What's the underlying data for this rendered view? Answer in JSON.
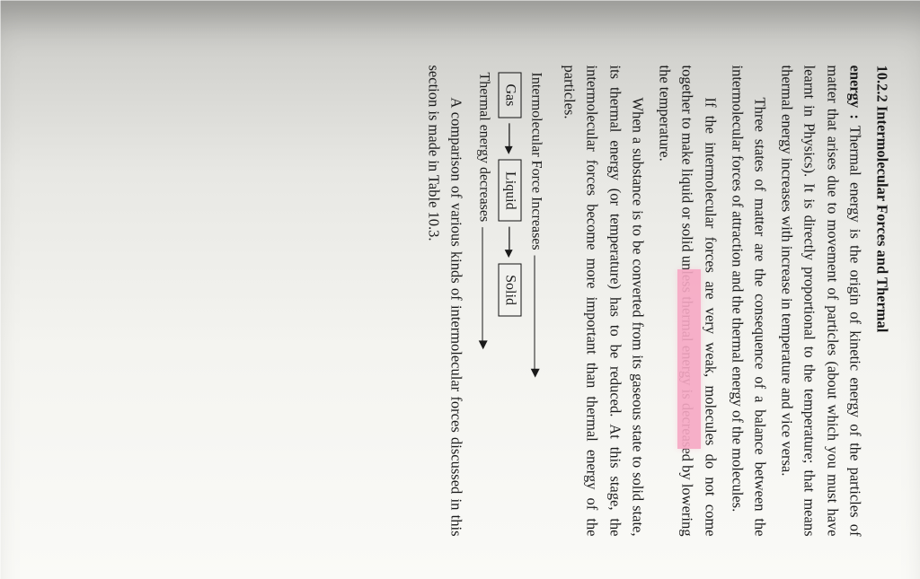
{
  "section": {
    "number": "10.2.2",
    "title": "Intermolecular Forces and Thermal"
  },
  "para1_lead": "energy :",
  "para1": "Thermal energy is the origin of kinetic energy of the particles of matter that arises due to movement of particles (about which you must have learnt in Physics). It is directly proportional to the temperature; that means thermal energy increases with increase in temperature and vice versa.",
  "para2": "Three states of matter are the consequence of a balance between the intermolecular forces of attraction and the thermal energy of the molecules.",
  "para3": "If the intermolecular forces are very weak, molecules do not come together to make liquid or solid unless thermal energy is decreased by lowering the temperature.",
  "para4": "When a substance is to be converted from its gaseous state to solid state, its thermal energy (or temperature) has to be reduced. At this stage, the intermolecular forces become more important than thermal energy of the particles.",
  "diagram": {
    "increase_label": "Intermolecular Force Increases",
    "states": {
      "gas": "Gas",
      "liquid": "Liquid",
      "solid": "Solid"
    },
    "decrease_label": "Thermal energy decreases",
    "arrow_long": "———————▸",
    "arrow_short": "──▸"
  },
  "para5": "A comparison of various kinds of intermolecular forces discussed in this section is made in Table 10.3.",
  "colors": {
    "text": "#1a1a1a",
    "highlight": "#f7a8c4"
  }
}
